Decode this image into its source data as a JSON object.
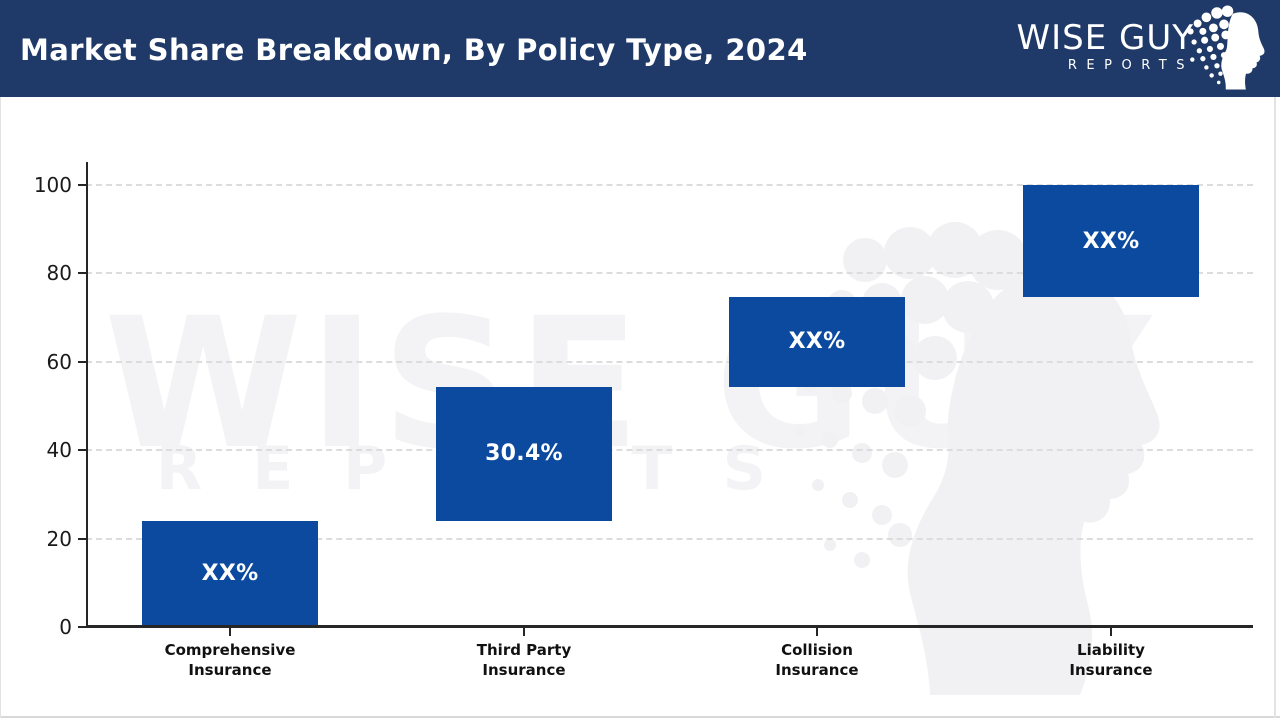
{
  "header": {
    "title": "Market Share Breakdown, By Policy Type, 2024",
    "background": "#1f3a68",
    "logo": {
      "wordmark": "WISE GUY",
      "subtitle": "REPORTS"
    }
  },
  "watermark": {
    "line1": "WISE GUY",
    "line2": "REPORTS"
  },
  "chart_data": {
    "type": "bar",
    "variant": "floating-segment-waterfall",
    "title": "Market Share Breakdown, By Policy Type, 2024",
    "categories": [
      "Comprehensive Insurance",
      "Third Party Insurance",
      "Collision Insurance",
      "Liability Insurance"
    ],
    "categories_lines": [
      [
        "Comprehensive",
        "Insurance"
      ],
      [
        "Third Party",
        "Insurance"
      ],
      [
        "Collision",
        "Insurance"
      ],
      [
        "Liability",
        "Insurance"
      ]
    ],
    "segments": [
      {
        "category": "Comprehensive Insurance",
        "from": 0,
        "to": 24,
        "label": "XX%"
      },
      {
        "category": "Third Party Insurance",
        "from": 24,
        "to": 54.4,
        "label": "30.4%"
      },
      {
        "category": "Collision Insurance",
        "from": 54.4,
        "to": 74.6,
        "label": "XX%"
      },
      {
        "category": "Liability Insurance",
        "from": 74.6,
        "to": 100,
        "label": "XX%"
      }
    ],
    "ylim": [
      0,
      100
    ],
    "yticks": [
      0,
      20,
      40,
      60,
      80,
      100
    ],
    "grid": {
      "horizontal": true,
      "style": "dashed",
      "color": "#dcdcdc"
    },
    "legend": "none",
    "bar_color": "#0b4a9f",
    "axis_color": "#262626",
    "value_label_color": "#ffffff"
  }
}
